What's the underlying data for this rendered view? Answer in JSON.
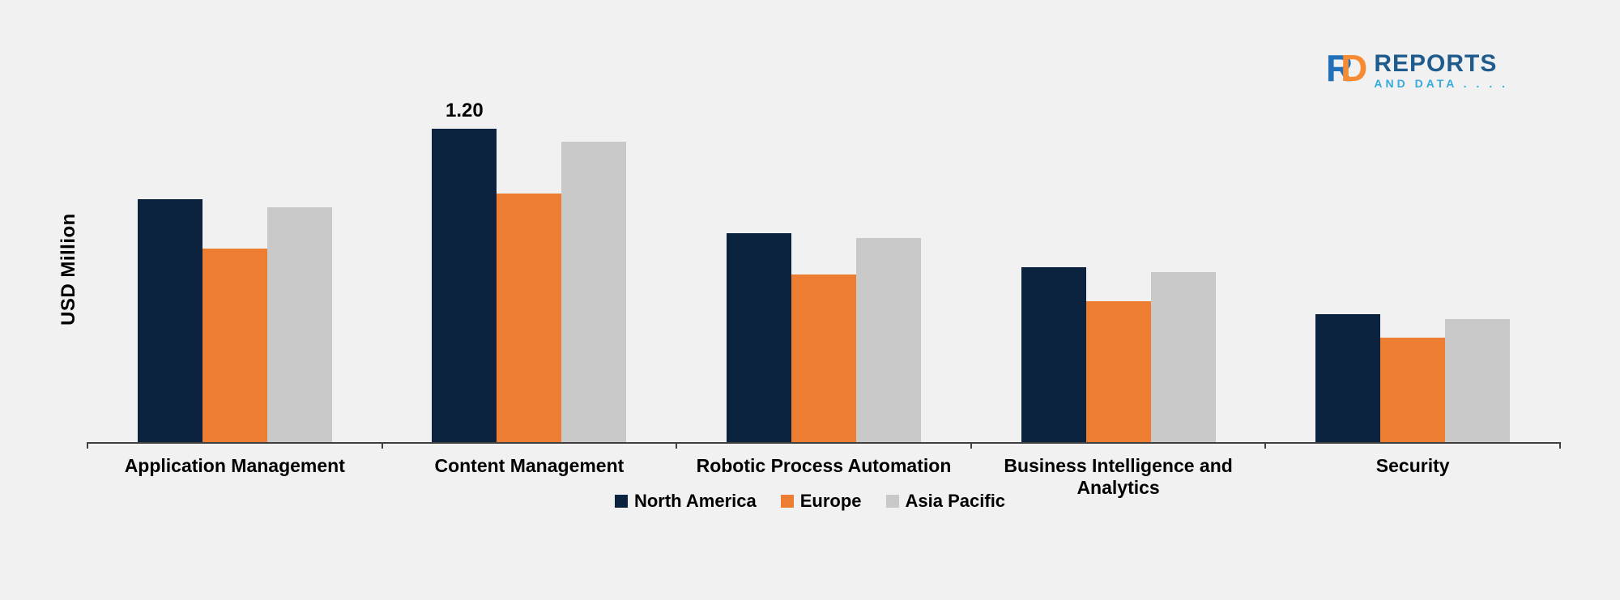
{
  "background_color": "#f1f1f1",
  "axis_color": "#404040",
  "ylabel": "USD Million",
  "logo": {
    "icon_letter_1": "R",
    "icon_letter_2": "D",
    "line1": "REPORTS",
    "line2": "AND DATA . . . ."
  },
  "chart_data": {
    "type": "bar",
    "title": "",
    "xlabel": "",
    "ylabel": "USD Million",
    "ylim": [
      0,
      1.32
    ],
    "grid": false,
    "legend_position": "bottom",
    "categories": [
      "Application Management",
      "Content Management",
      "Robotic Process Automation",
      "Business Intelligence and Analytics",
      "Security"
    ],
    "series": [
      {
        "name": "North America",
        "color": "#0c2340",
        "values": [
          0.93,
          1.2,
          0.8,
          0.67,
          0.49
        ]
      },
      {
        "name": "Europe",
        "color": "#ed7d31",
        "values": [
          0.74,
          0.95,
          0.64,
          0.54,
          0.4
        ]
      },
      {
        "name": "Asia Pacific",
        "color": "#c9c9c9",
        "values": [
          0.9,
          1.15,
          0.78,
          0.65,
          0.47
        ]
      }
    ],
    "annotations": [
      {
        "series": "North America",
        "category": "Content Management",
        "text": "1.20"
      }
    ]
  }
}
